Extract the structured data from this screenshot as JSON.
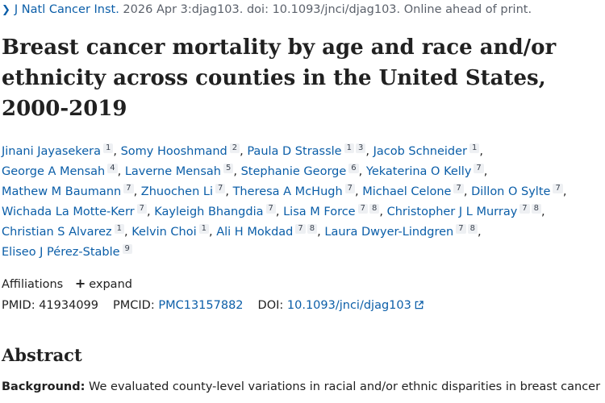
{
  "citation": {
    "chevron_icon": "chevron-right-icon",
    "journal": "J Natl Cancer Inst.",
    "rest": " 2026 Apr 3:djag103. doi: 10.1093/jnci/djag103. Online ahead of print."
  },
  "title": "Breast cancer mortality by age and race and/or ethnicity across counties in the United States, 2000-2019",
  "authors": [
    {
      "name": "Jinani Jayasekera",
      "affs": [
        "1"
      ]
    },
    {
      "name": "Somy Hooshmand",
      "affs": [
        "2"
      ]
    },
    {
      "name": "Paula D Strassle",
      "affs": [
        "1",
        "3"
      ]
    },
    {
      "name": "Jacob Schneider",
      "affs": [
        "1"
      ]
    },
    {
      "name": "George A Mensah",
      "affs": [
        "4"
      ]
    },
    {
      "name": "Laverne Mensah",
      "affs": [
        "5"
      ]
    },
    {
      "name": "Stephanie George",
      "affs": [
        "6"
      ]
    },
    {
      "name": "Yekaterina O Kelly",
      "affs": [
        "7"
      ]
    },
    {
      "name": "Mathew M Baumann",
      "affs": [
        "7"
      ]
    },
    {
      "name": "Zhuochen Li",
      "affs": [
        "7"
      ]
    },
    {
      "name": "Theresa A McHugh",
      "affs": [
        "7"
      ]
    },
    {
      "name": "Michael Celone",
      "affs": [
        "7"
      ]
    },
    {
      "name": "Dillon O Sylte",
      "affs": [
        "7"
      ]
    },
    {
      "name": "Wichada La Motte-Kerr",
      "affs": [
        "7"
      ]
    },
    {
      "name": "Kayleigh Bhangdia",
      "affs": [
        "7"
      ]
    },
    {
      "name": "Lisa M Force",
      "affs": [
        "7",
        "8"
      ]
    },
    {
      "name": "Christopher J L Murray",
      "affs": [
        "7",
        "8"
      ]
    },
    {
      "name": "Christian S Alvarez",
      "affs": [
        "1"
      ]
    },
    {
      "name": "Kelvin Choi",
      "affs": [
        "1"
      ]
    },
    {
      "name": "Ali H Mokdad",
      "affs": [
        "7",
        "8"
      ]
    },
    {
      "name": "Laura Dwyer-Lindgren",
      "affs": [
        "7",
        "8"
      ]
    },
    {
      "name": "Eliseo J Pérez-Stable",
      "affs": [
        "9"
      ]
    }
  ],
  "affiliations": {
    "label": "Affiliations",
    "expand_label": "expand",
    "expand_icon": "plus-icon"
  },
  "ids": {
    "pmid_label": "PMID:",
    "pmid": "41934099",
    "pmcid_label": "PMCID:",
    "pmcid": "PMC13157882",
    "doi_label": "DOI:",
    "doi": "10.1093/jnci/djag103",
    "doi_icon": "external-link-icon"
  },
  "abstract": {
    "heading": "Abstract",
    "background_label": "Background:",
    "background_text": " We evaluated county-level variations in racial and/or ethnic disparities in breast cancer"
  }
}
